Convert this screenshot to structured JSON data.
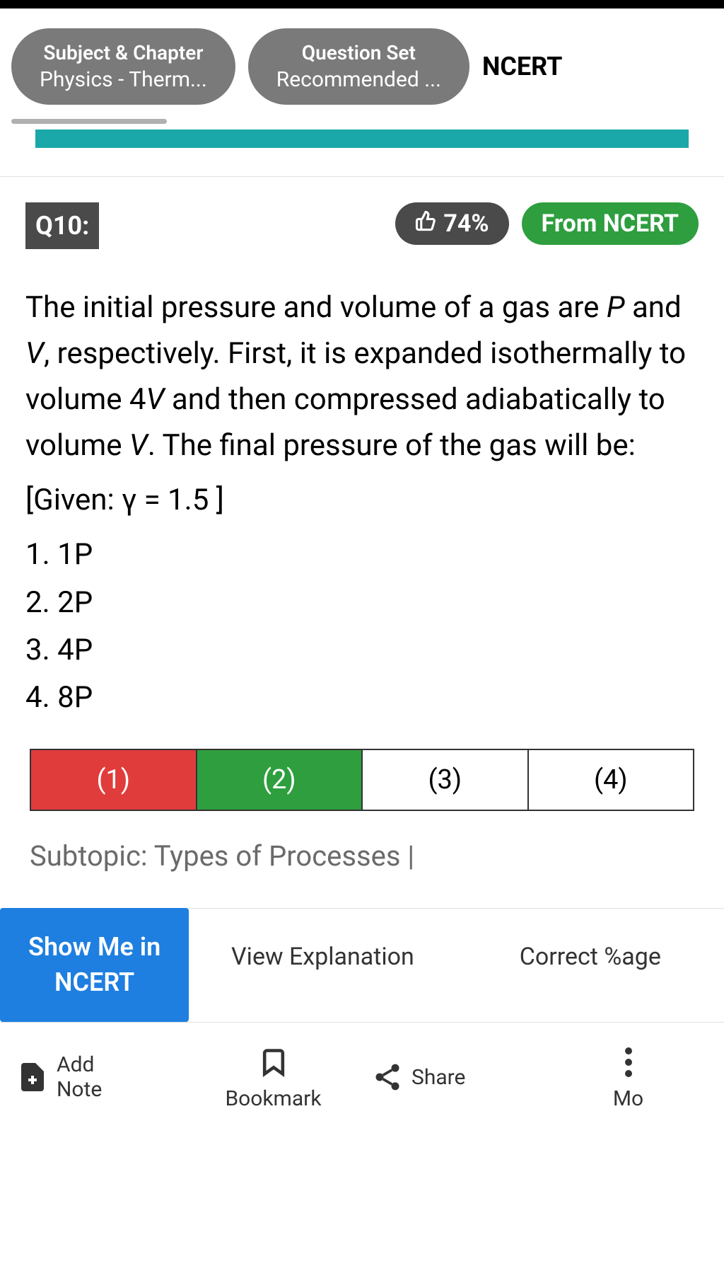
{
  "top_chips": [
    {
      "title": "Subject & Chapter",
      "subtitle": "Physics - Therm..."
    },
    {
      "title": "Question Set",
      "subtitle": "Recommended ..."
    }
  ],
  "ncert_label": "NCERT",
  "question": {
    "number": "Q10:",
    "like_pct": "74%",
    "from_badge": "From NCERT",
    "text_html": "The initial pressure and volume of a gas are <span class='italic'>P</span> and <span class='italic'>V</span>, respectively. First, it is expanded isothermally to volume 4<span class='italic'>V</span> and then compressed adiabatically to volume <span class='italic'>V</span>. The final pressure of the gas will be:",
    "given": "[Given: γ = 1.5 ]",
    "options": [
      "1. 1P",
      "2. 2P",
      "3. 4P",
      "4. 8P"
    ],
    "answers": [
      {
        "label": "(1)",
        "state": "red"
      },
      {
        "label": "(2)",
        "state": "green"
      },
      {
        "label": "(3)",
        "state": ""
      },
      {
        "label": "(4)",
        "state": ""
      }
    ],
    "subtopic": "Subtopic:  Types of Processes |"
  },
  "actions": {
    "primary": "Show Me in\nNCERT",
    "secondary1": "View Explanation",
    "secondary2": "Correct %age"
  },
  "bottom": {
    "add_note": {
      "label1": "Add",
      "label2": "Note"
    },
    "bookmark": "Bookmark",
    "share": "Share",
    "more": "Mo"
  },
  "colors": {
    "chip_bg": "#7a7a7a",
    "progress": "#1aa8a8",
    "qnum_bg": "#4a4a4a",
    "green": "#2e9e3f",
    "red": "#e03c3c",
    "primary_blue": "#1e7fe0"
  }
}
